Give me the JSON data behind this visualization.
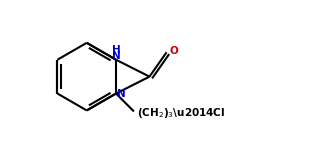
{
  "bg_color": "#ffffff",
  "bond_color": "#000000",
  "N_color": "#0000cc",
  "O_color": "#cc0000",
  "text_color": "#000000",
  "line_width": 1.5,
  "font_size": 7.5,
  "figsize": [
    3.11,
    1.59
  ],
  "dpi": 100,
  "xlim": [
    0,
    10
  ],
  "ylim": [
    0,
    5.5
  ]
}
